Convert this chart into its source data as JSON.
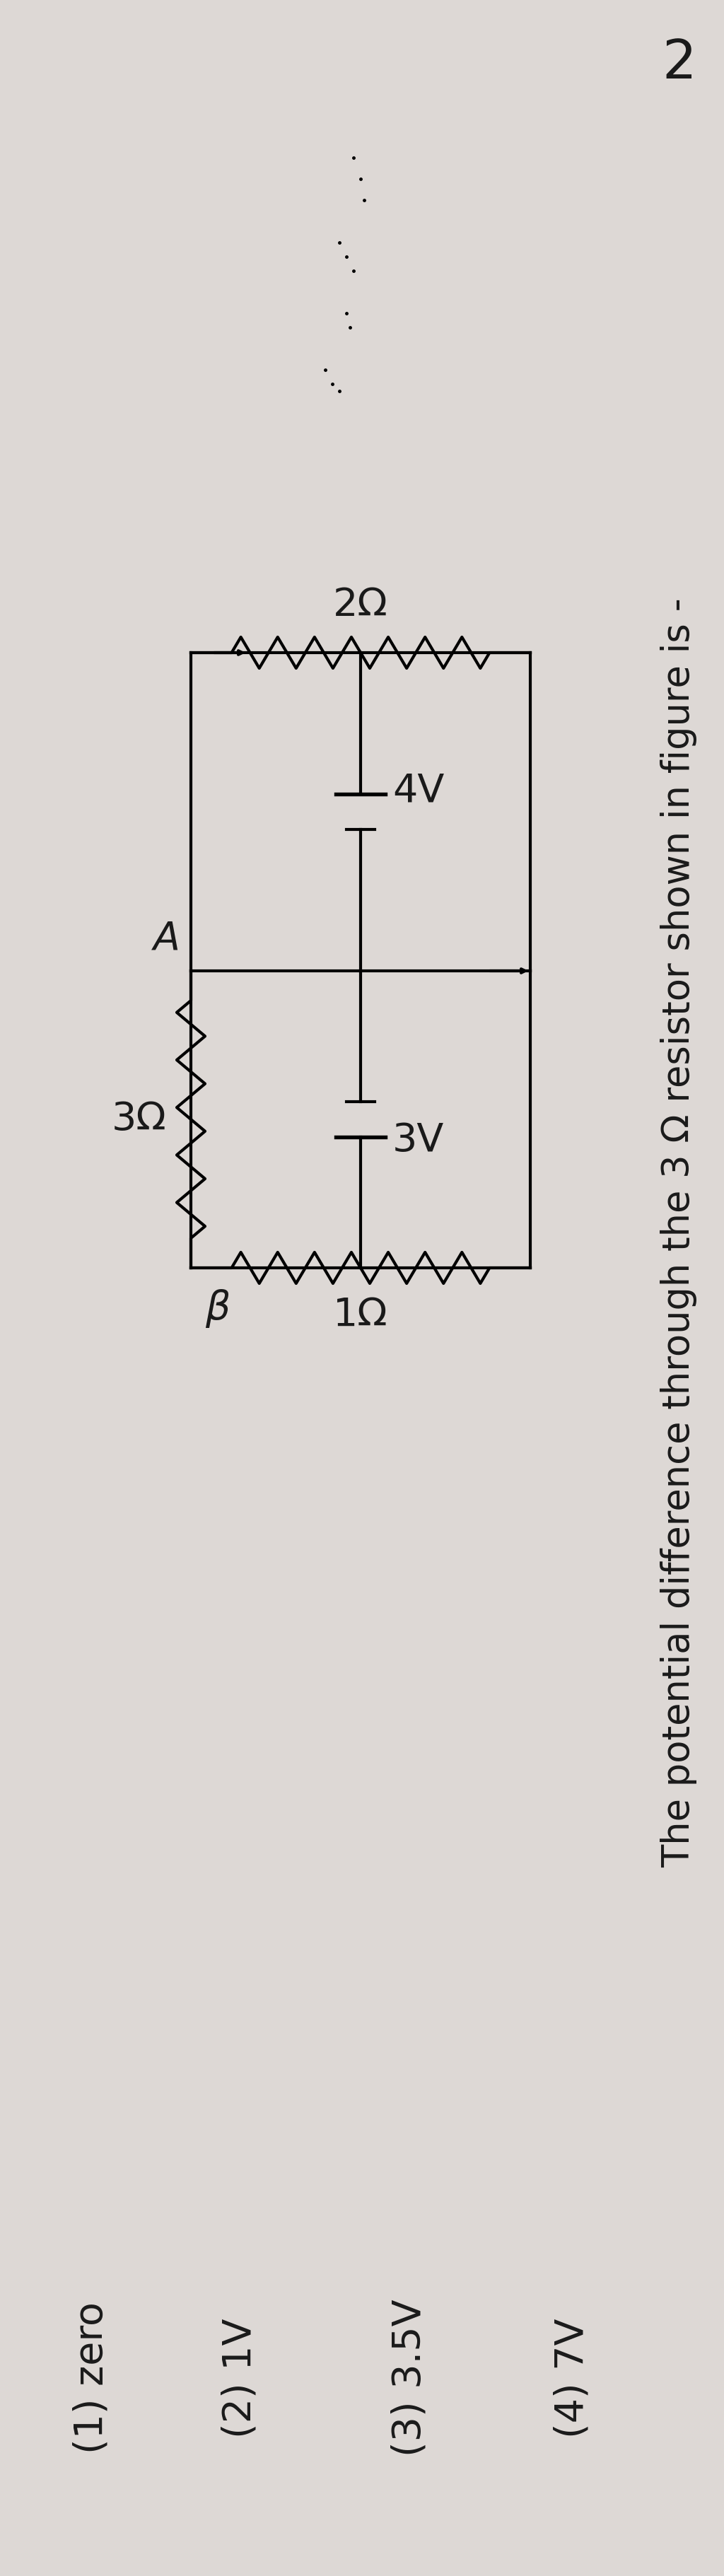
{
  "background_color": "#ddd8d5",
  "question_number": "2",
  "question_text": "The potential difference through the 3 Ω resistor shown in figure is -",
  "options": [
    "(1) zero",
    "(2) 1V",
    "(3) 3.5V",
    "(4) 7V"
  ],
  "circuit": {
    "top_resistor_label": "2Ω",
    "battery1_label": "4V",
    "battery2_label": "3V",
    "left_resistor_label": "3Ω",
    "bottom_resistor_label": "1Ω",
    "node_A": "A",
    "node_B": "β"
  },
  "text_color": "#1a1a1a",
  "lw": 2.0
}
